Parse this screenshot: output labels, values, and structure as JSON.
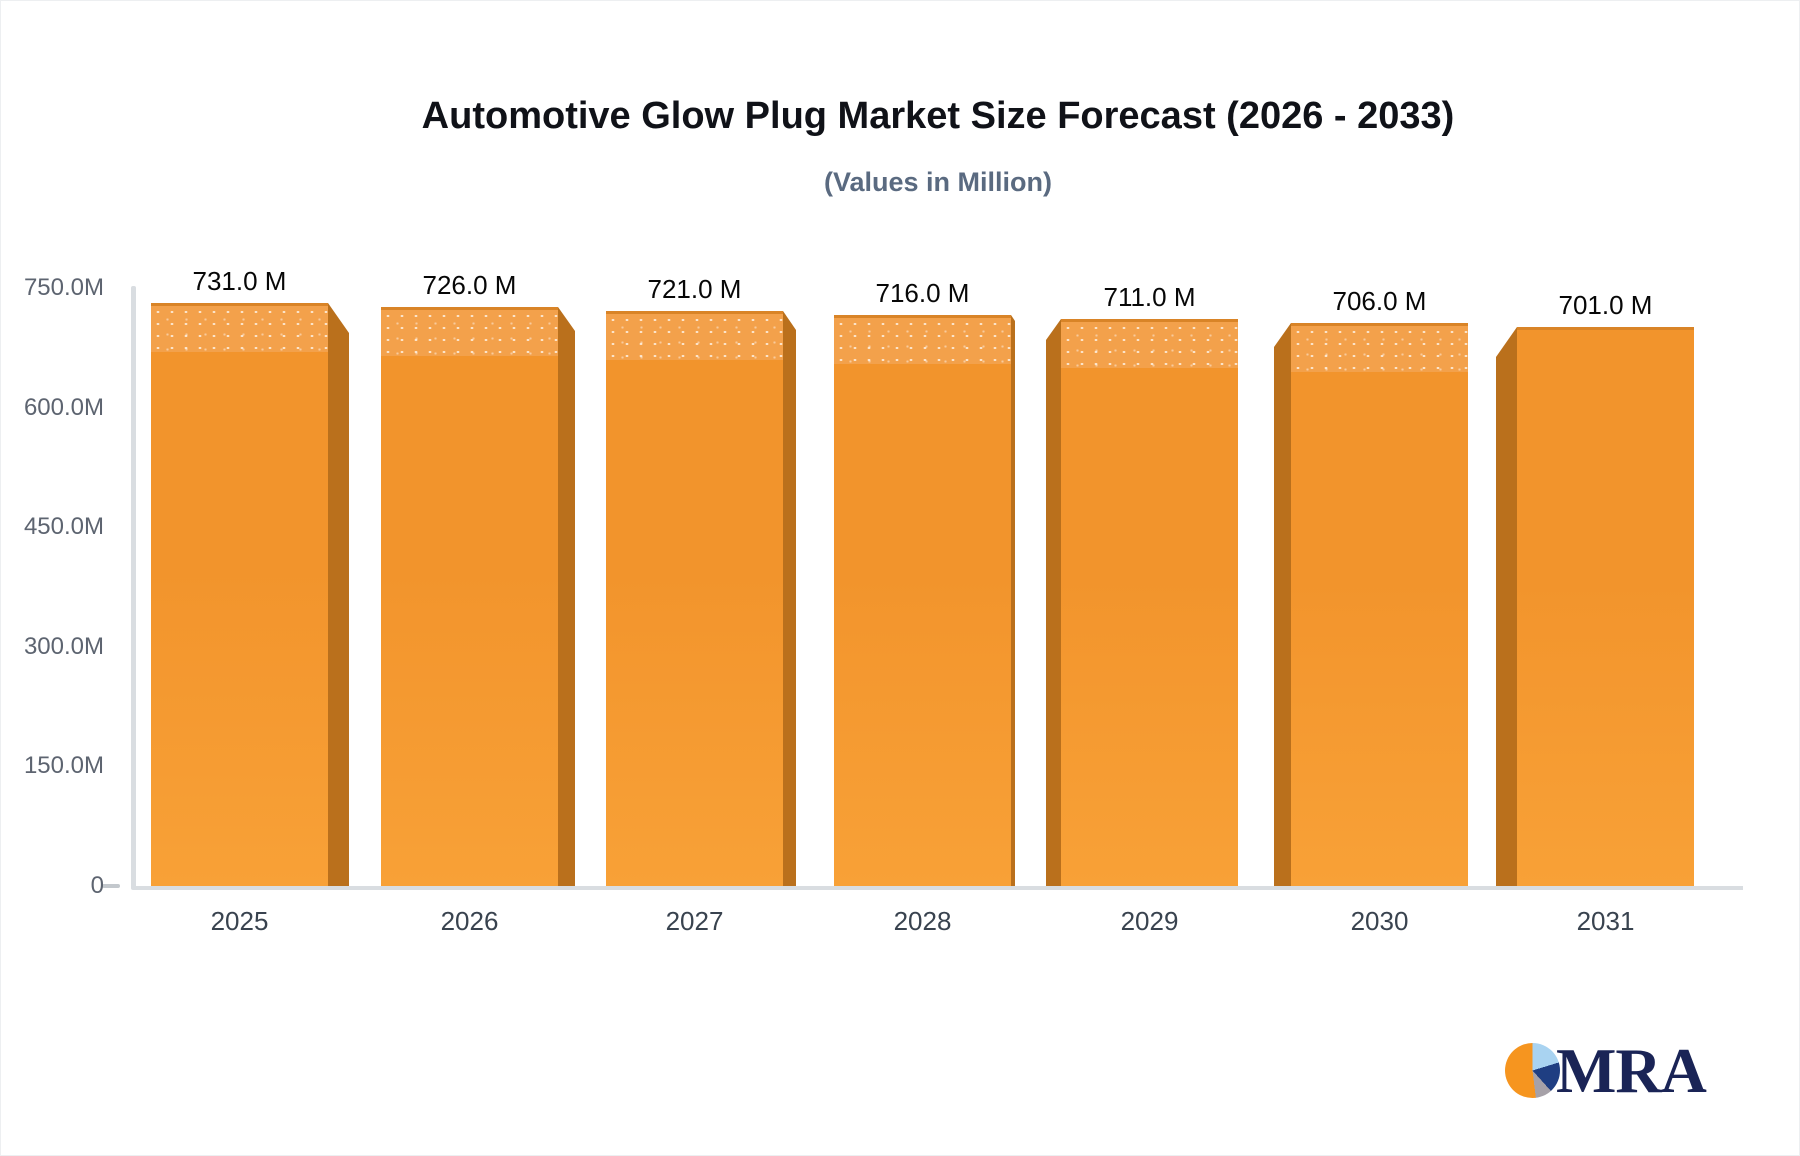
{
  "chart": {
    "title": "Automotive Glow Plug Market Size Forecast (2026 - 2033)",
    "subtitle": "(Values in Million)"
  },
  "chart_data": {
    "type": "bar",
    "title": "Automotive Glow Plug Market Size Forecast (2026 - 2033)",
    "subtitle": "(Values in Million)",
    "xlabel": "",
    "ylabel": "",
    "categories": [
      "2025",
      "2026",
      "2027",
      "2028",
      "2029",
      "2030",
      "2031"
    ],
    "values": [
      731,
      726,
      721,
      716,
      711,
      706,
      701
    ],
    "value_labels": [
      "731.0 M",
      "726.0 M",
      "721.0 M",
      "716.0 M",
      "711.0 M",
      "706.0 M",
      "701.0 M"
    ],
    "y_ticks": [
      "750.0M",
      "600.0M",
      "450.0M",
      "300.0M",
      "150.0M",
      "0"
    ],
    "ylim": [
      0,
      750
    ],
    "grid": false,
    "legend": "none",
    "style": "3d-columns",
    "colors": {
      "bar_top": "#F2942C",
      "bar_bottom": "#F8A137",
      "bar_side": "#BA701C",
      "cap_dotted_bg": "#F3A14B",
      "axis_line": "#D9DDE1",
      "title_text": "#101218",
      "subtitle_text": "#5A6A80",
      "tick_text": "#5D6470",
      "category_text": "#39434F",
      "value_text": "#070707"
    }
  },
  "logo": {
    "text": "MRA",
    "icon": "pie-chart-icon",
    "colors": {
      "orange": "#F6951F",
      "light_blue": "#A9D3F1",
      "navy": "#1F3E82",
      "gray": "#A6A1A8",
      "text_navy": "#1A2456"
    }
  }
}
